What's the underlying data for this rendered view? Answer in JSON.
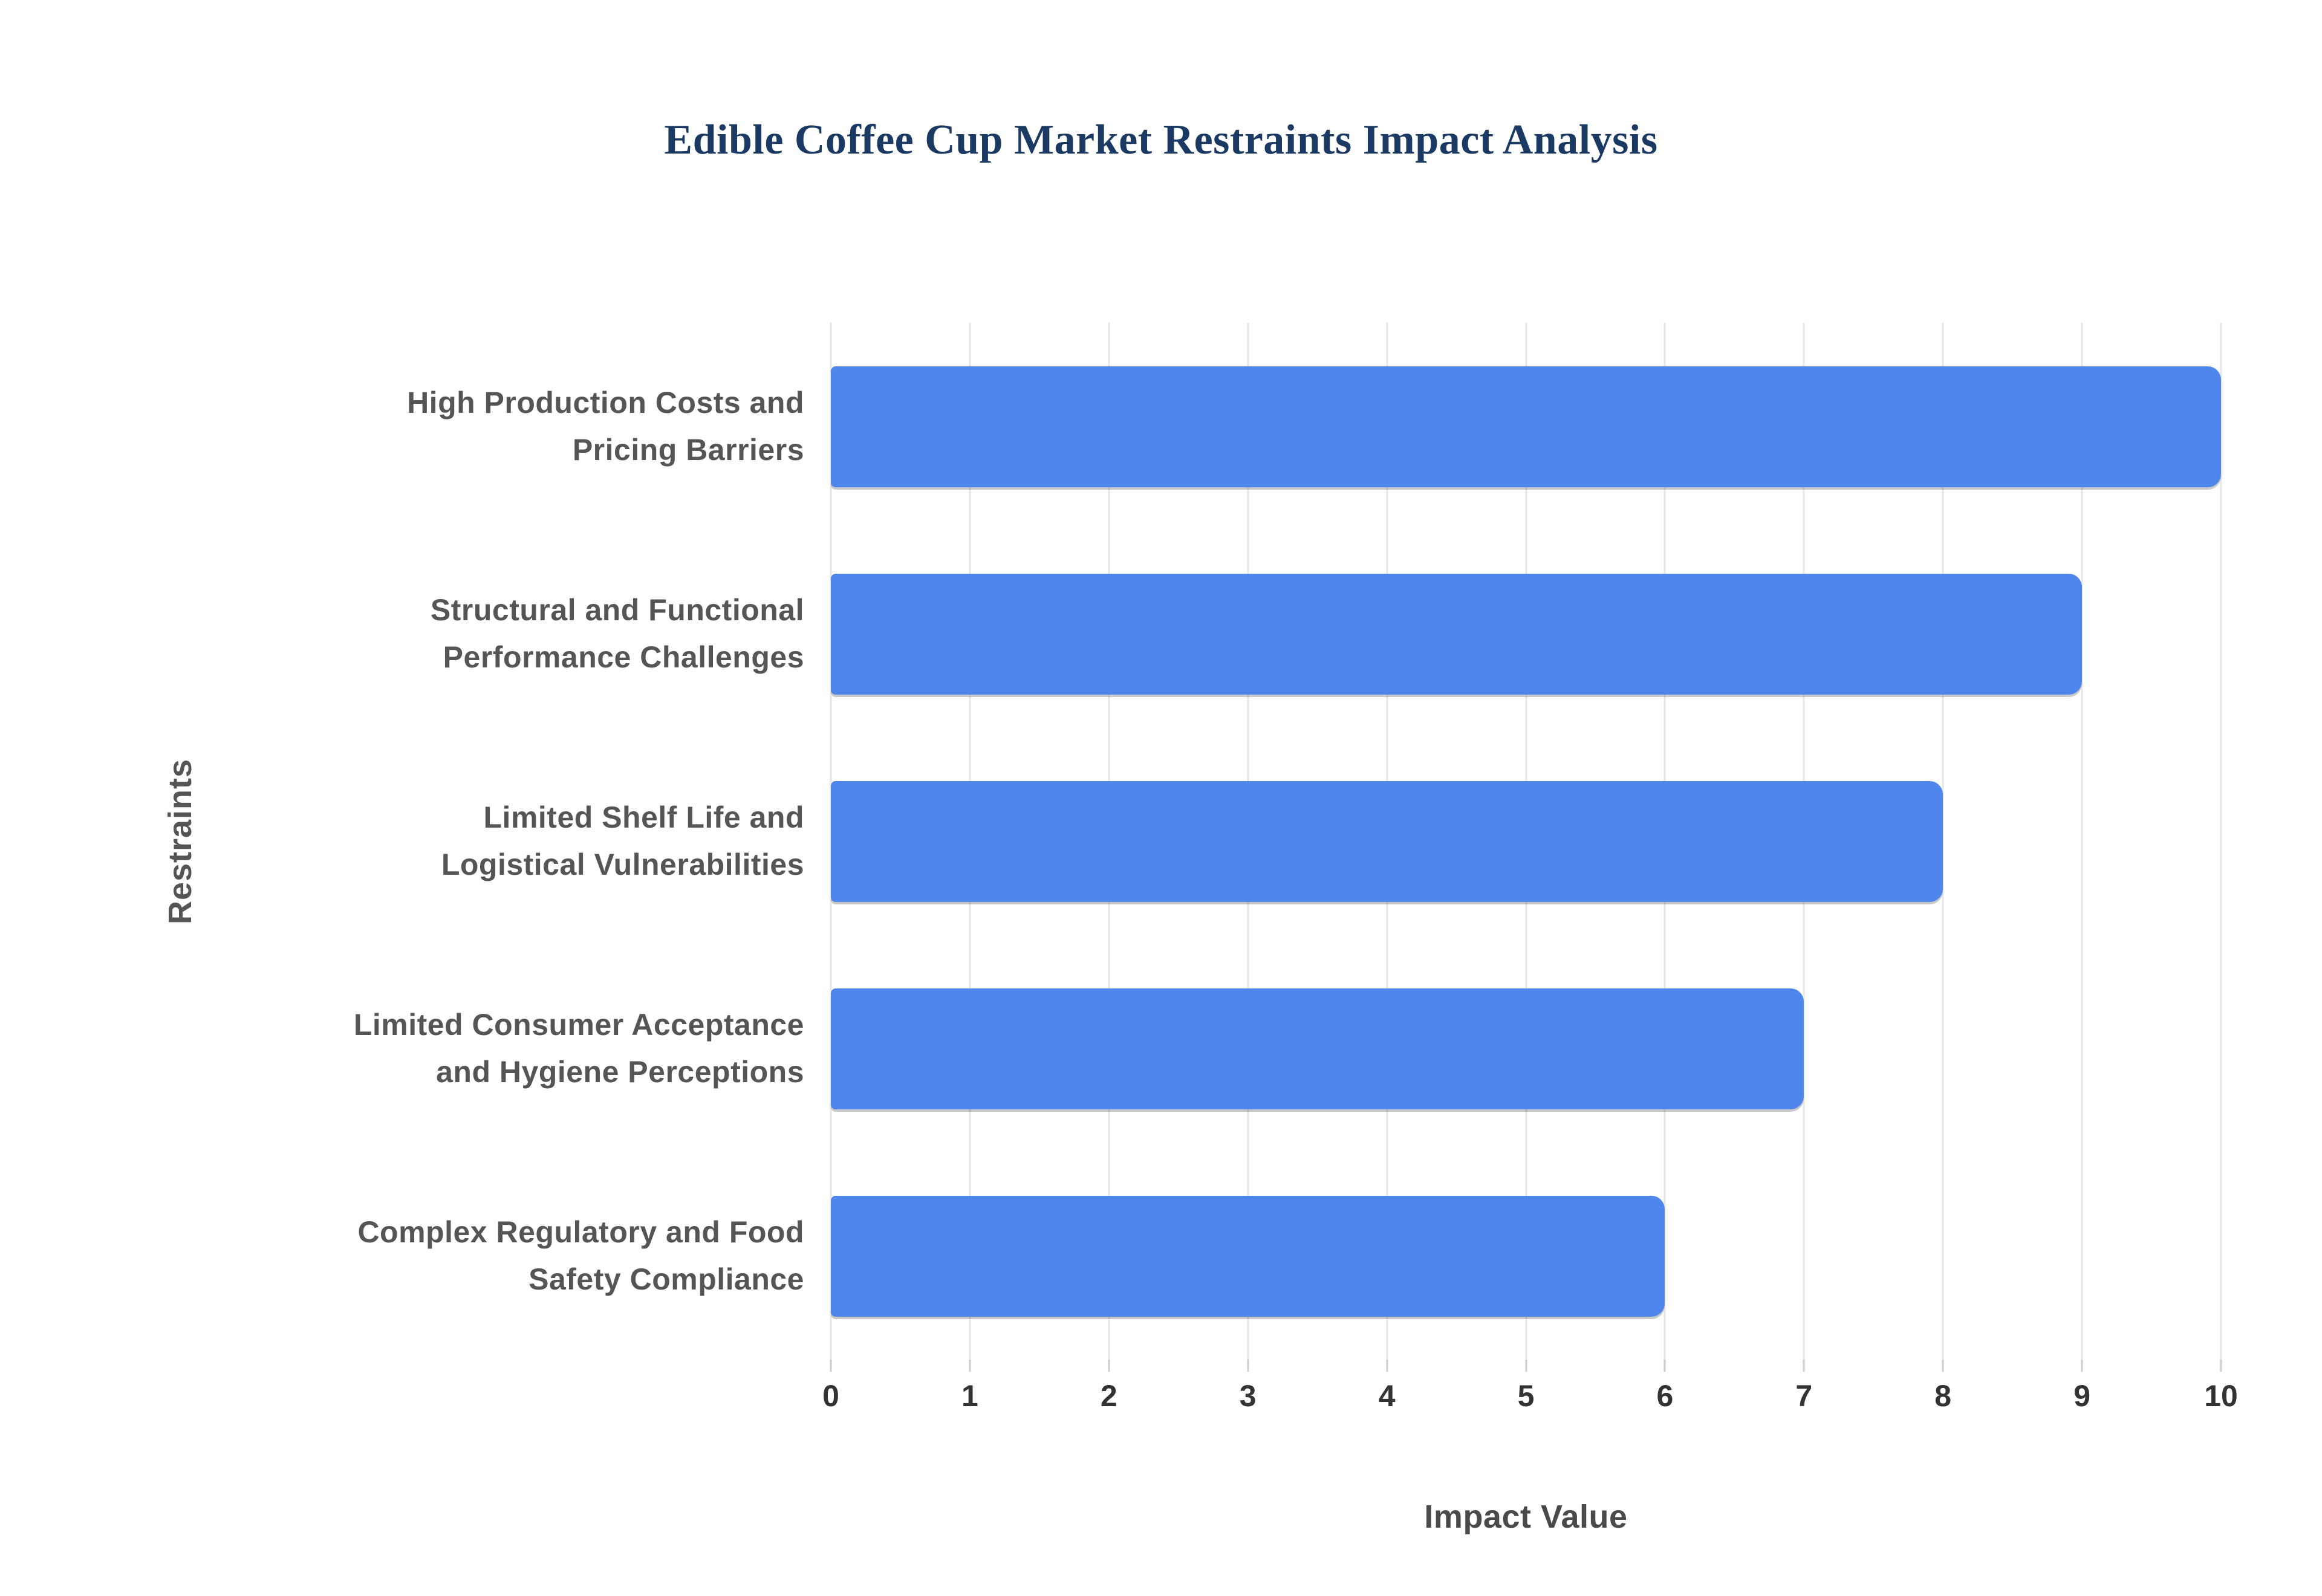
{
  "chart_data": {
    "type": "bar",
    "orientation": "horizontal",
    "title": "Edible Coffee Cup Market Restraints Impact Analysis",
    "xlabel": "Impact Value",
    "ylabel": "Restraints",
    "categories": [
      "High Production Costs and\nPricing Barriers",
      "Structural and Functional\nPerformance Challenges",
      "Limited Shelf Life and\nLogistical Vulnerabilities",
      "Limited Consumer Acceptance\nand Hygiene Perceptions",
      "Complex Regulatory and Food\nSafety Compliance"
    ],
    "values": [
      10,
      9,
      8,
      7,
      6
    ],
    "xlim": [
      0,
      10
    ],
    "xticks": [
      0,
      1,
      2,
      3,
      4,
      5,
      6,
      7,
      8,
      9,
      10
    ],
    "grid": "vertical",
    "legend": "none",
    "colors": {
      "bar": "#4F86EC",
      "title": "#1A3A63",
      "category_label": "#555555",
      "tick_label": "#333333",
      "axis_title": "#4A4A4A",
      "gridline": "#E6E6E6",
      "tick_mark": "#CCCCCC",
      "background": "#FFFFFF"
    }
  }
}
